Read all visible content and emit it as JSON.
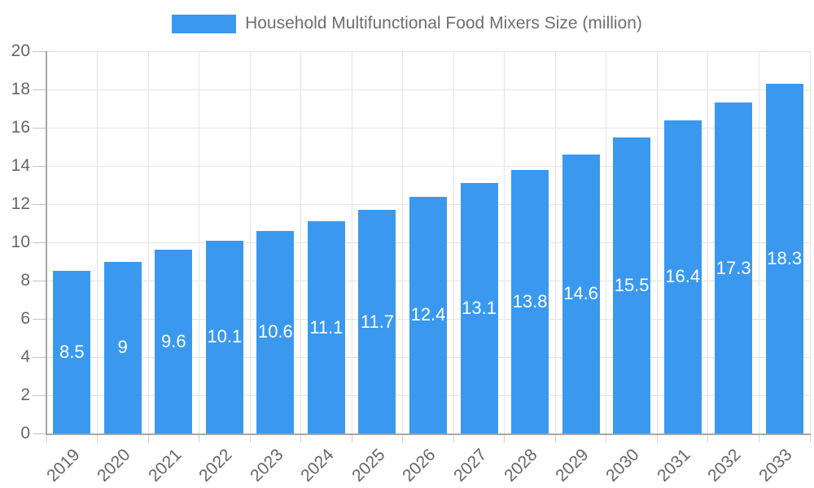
{
  "chart_data": {
    "type": "bar",
    "title": "Household Multifunctional Food Mixers Size (million)",
    "series_name": "Household Multifunctional Food Mixers Size (million)",
    "categories": [
      "2019",
      "2020",
      "2021",
      "2022",
      "2023",
      "2024",
      "2025",
      "2026",
      "2027",
      "2028",
      "2029",
      "2030",
      "2031",
      "2032",
      "2033"
    ],
    "values": [
      8.5,
      9,
      9.6,
      10.1,
      10.6,
      11.1,
      11.7,
      12.4,
      13.1,
      13.8,
      14.6,
      15.5,
      16.4,
      17.3,
      18.3
    ],
    "xlabel": "",
    "ylabel": "",
    "ylim": [
      0,
      20
    ],
    "yticks": [
      0,
      2,
      4,
      6,
      8,
      10,
      12,
      14,
      16,
      18,
      20
    ],
    "grid": true,
    "legend_position": "top",
    "bar_value_labels": "inside-center, white",
    "colors": {
      "bar": "#3a99ef",
      "bar_label": "#ffffff",
      "grid": "#e3e3e3",
      "axis": "#a6a6a6",
      "tick_label": "#666666",
      "legend_text": "#6e6e6e",
      "background": "#ffffff"
    }
  }
}
